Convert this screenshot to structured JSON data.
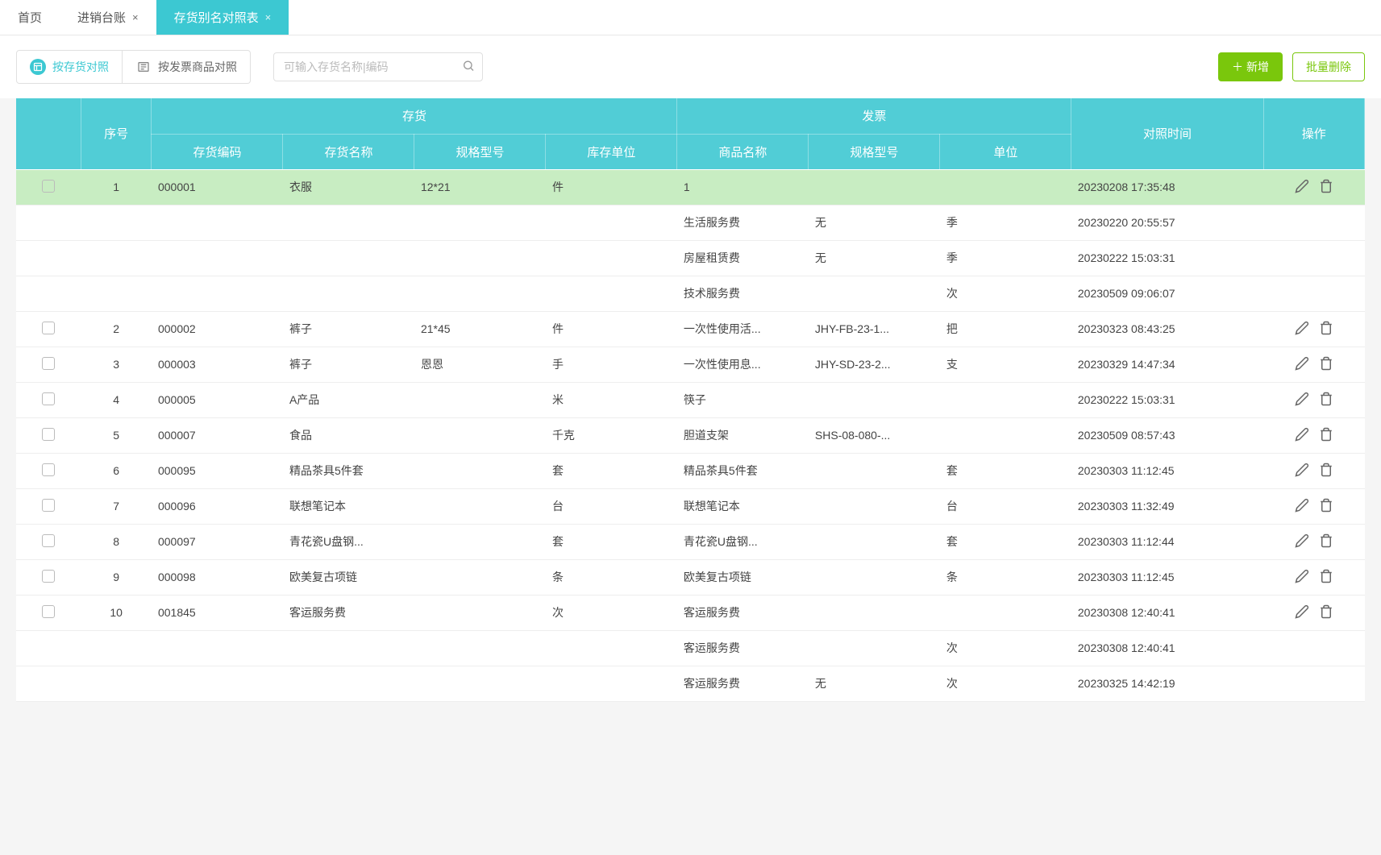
{
  "tabs": {
    "home": "首页",
    "ledger": "进销台账",
    "alias": "存货别名对照表"
  },
  "subtabs": {
    "byInventory": "按存货对照",
    "byInvoice": "按发票商品对照"
  },
  "search": {
    "placeholder": "可输入存货名称|编码"
  },
  "buttons": {
    "add": "新增",
    "batchDelete": "批量删除"
  },
  "columns": {
    "seq": "序号",
    "inventoryGroup": "存货",
    "code": "存货编码",
    "name": "存货名称",
    "spec": "规格型号",
    "unit": "库存单位",
    "invoiceGroup": "发票",
    "pname": "商品名称",
    "pspec": "规格型号",
    "punit": "单位",
    "time": "对照时间",
    "ops": "操作"
  },
  "rows": [
    {
      "highlight": true,
      "check": true,
      "seq": "1",
      "code": "000001",
      "name": "衣服",
      "spec": "12*21",
      "unit": "件",
      "pname": "1",
      "pspec": "",
      "punit": "",
      "time": "20230208 17:35:48",
      "ops": true
    },
    {
      "highlight": false,
      "check": false,
      "seq": "",
      "code": "",
      "name": "",
      "spec": "",
      "unit": "",
      "pname": "生活服务费",
      "pspec": "无",
      "punit": "季",
      "time": "20230220 20:55:57",
      "ops": false
    },
    {
      "highlight": false,
      "check": false,
      "seq": "",
      "code": "",
      "name": "",
      "spec": "",
      "unit": "",
      "pname": "房屋租赁费",
      "pspec": "无",
      "punit": "季",
      "time": "20230222 15:03:31",
      "ops": false
    },
    {
      "highlight": false,
      "check": false,
      "seq": "",
      "code": "",
      "name": "",
      "spec": "",
      "unit": "",
      "pname": "技术服务费",
      "pspec": "",
      "punit": "次",
      "time": "20230509 09:06:07",
      "ops": false
    },
    {
      "highlight": false,
      "check": true,
      "seq": "2",
      "code": "000002",
      "name": "裤子",
      "spec": "21*45",
      "unit": "件",
      "pname": "一次性使用活...",
      "pspec": "JHY-FB-23-1...",
      "punit": "把",
      "time": "20230323 08:43:25",
      "ops": true
    },
    {
      "highlight": false,
      "check": true,
      "seq": "3",
      "code": "000003",
      "name": "裤子",
      "spec": "恩恩",
      "unit": "手",
      "pname": "一次性使用息...",
      "pspec": "JHY-SD-23-2...",
      "punit": "支",
      "time": "20230329 14:47:34",
      "ops": true
    },
    {
      "highlight": false,
      "check": true,
      "seq": "4",
      "code": "000005",
      "name": "A产品",
      "spec": "",
      "unit": "米",
      "pname": "筷子",
      "pspec": "",
      "punit": "",
      "time": "20230222 15:03:31",
      "ops": true
    },
    {
      "highlight": false,
      "check": true,
      "seq": "5",
      "code": "000007",
      "name": "食品",
      "spec": "",
      "unit": "千克",
      "pname": "胆道支架",
      "pspec": "SHS-08-080-...",
      "punit": "",
      "time": "20230509 08:57:43",
      "ops": true
    },
    {
      "highlight": false,
      "check": true,
      "seq": "6",
      "code": "000095",
      "name": "精品茶具5件套",
      "spec": "",
      "unit": "套",
      "pname": "精品茶具5件套",
      "pspec": "",
      "punit": "套",
      "time": "20230303 11:12:45",
      "ops": true
    },
    {
      "highlight": false,
      "check": true,
      "seq": "7",
      "code": "000096",
      "name": "联想笔记本",
      "spec": "",
      "unit": "台",
      "pname": "联想笔记本",
      "pspec": "",
      "punit": "台",
      "time": "20230303 11:32:49",
      "ops": true
    },
    {
      "highlight": false,
      "check": true,
      "seq": "8",
      "code": "000097",
      "name": "青花瓷U盘钢...",
      "spec": "",
      "unit": "套",
      "pname": "青花瓷U盘钢...",
      "pspec": "",
      "punit": "套",
      "time": "20230303 11:12:44",
      "ops": true
    },
    {
      "highlight": false,
      "check": true,
      "seq": "9",
      "code": "000098",
      "name": "欧美复古项链",
      "spec": "",
      "unit": "条",
      "pname": "欧美复古项链",
      "pspec": "",
      "punit": "条",
      "time": "20230303 11:12:45",
      "ops": true
    },
    {
      "highlight": false,
      "check": true,
      "seq": "10",
      "code": "001845",
      "name": "客运服务费",
      "spec": "",
      "unit": "次",
      "pname": "客运服务费",
      "pspec": "",
      "punit": "",
      "time": "20230308 12:40:41",
      "ops": true
    },
    {
      "highlight": false,
      "check": false,
      "seq": "",
      "code": "",
      "name": "",
      "spec": "",
      "unit": "",
      "pname": "客运服务费",
      "pspec": "",
      "punit": "次",
      "time": "20230308 12:40:41",
      "ops": false
    },
    {
      "highlight": false,
      "check": false,
      "seq": "",
      "code": "",
      "name": "",
      "spec": "",
      "unit": "",
      "pname": "客运服务费",
      "pspec": "无",
      "punit": "次",
      "time": "20230325 14:42:19",
      "ops": false
    }
  ],
  "colors": {
    "accent": "#51cdd6",
    "green": "#7ac70c",
    "highlight": "#c8edc2"
  }
}
